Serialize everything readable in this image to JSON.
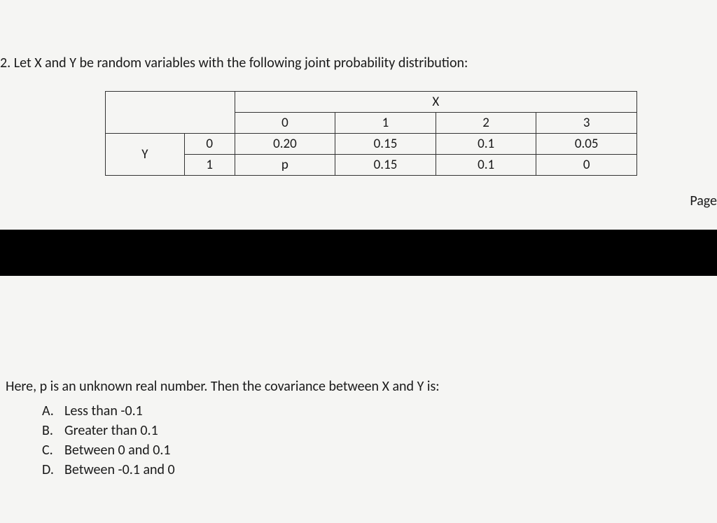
{
  "question": {
    "number_prefix": "2.",
    "text": "Let X and Y be random variables with the following joint probability distribution:"
  },
  "table": {
    "col_header_label": "X",
    "row_header_label": "Y",
    "x_values": [
      "0",
      "1",
      "2",
      "3"
    ],
    "y_values": [
      "0",
      "1"
    ],
    "rows": [
      [
        "0.20",
        "0.15",
        "0.1",
        "0.05"
      ],
      [
        "p",
        "0.15",
        "0.1",
        "0"
      ]
    ],
    "border_color": "#333333",
    "background_color": "#f5f5f3",
    "font_size": 19
  },
  "page_label": "Page",
  "black_bar": {
    "color": "#000000",
    "height": 66
  },
  "subtext": "Here, p is an unknown real number. Then the covariance between X and Y is:",
  "options": [
    {
      "letter": "A.",
      "text": "Less than -0.1"
    },
    {
      "letter": "B.",
      "text": "Greater than 0.1"
    },
    {
      "letter": "C.",
      "text": "Between 0 and 0.1"
    },
    {
      "letter": "D.",
      "text": "Between -0.1 and 0"
    }
  ],
  "colors": {
    "page_bg": "#f5f5f3",
    "text": "#1a1a1a"
  }
}
